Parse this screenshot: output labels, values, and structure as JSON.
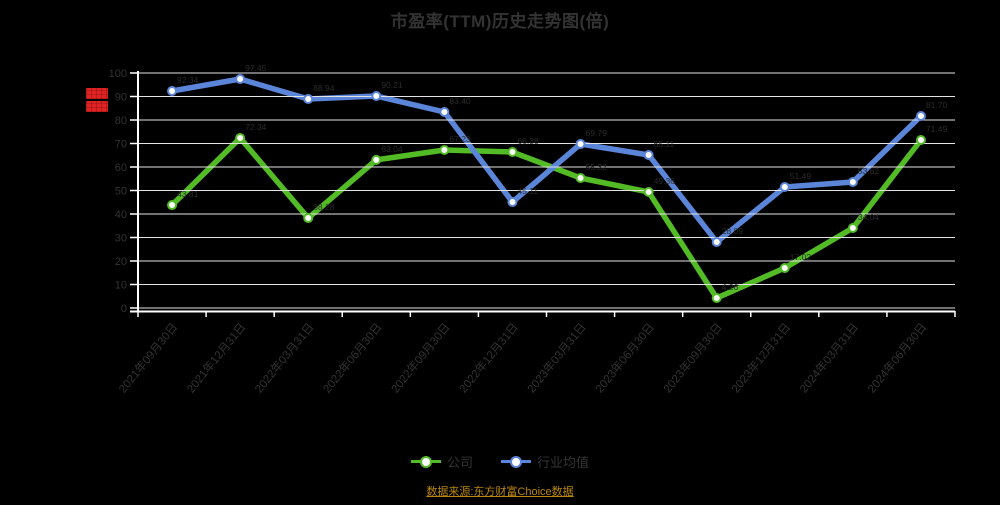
{
  "title": "市盈率(TTM)历史走势图(倍)",
  "source_text": "数据来源:东方财富Choice数据",
  "colors": {
    "background": "#000000",
    "text": "#333333",
    "label_text": "#2b2b2b",
    "grid": "#e3e3e3",
    "axis": "#ffffff",
    "green_series": "#52bb26",
    "blue_series": "#5b85d8",
    "source_link": "#b8860b",
    "red_badge": "#e02222"
  },
  "chart_data": {
    "type": "line",
    "title": "市盈率(TTM)历史走势图(倍)",
    "categories": [
      "2021年09月30日",
      "2021年12月31日",
      "2022年03月31日",
      "2022年06月30日",
      "2022年09月30日",
      "2022年12月31日",
      "2023年03月31日",
      "2023年06月30日",
      "2023年09月30日",
      "2023年12月31日",
      "2024年03月31日",
      "2024年06月30日"
    ],
    "series": [
      {
        "name": "公司",
        "color": "#52bb26",
        "values": [
          43.81,
          72.34,
          38.28,
          63.04,
          67.23,
          66.38,
          55.32,
          49.36,
          4.26,
          17.02,
          34.04,
          71.49
        ]
      },
      {
        "name": "行业均值",
        "color": "#5b85d8",
        "values": [
          92.34,
          97.45,
          88.94,
          90.21,
          83.4,
          45.11,
          69.79,
          65.11,
          28.09,
          51.49,
          53.62,
          81.7
        ]
      }
    ],
    "ylim": [
      0,
      100
    ],
    "ytick_labels": [
      "0",
      "10",
      "20",
      "30",
      "40",
      "50",
      "60",
      "70",
      "80",
      "90",
      "100"
    ],
    "xlabel": "",
    "ylabel": "",
    "grid": true,
    "legend_position": "bottom",
    "data_labels": true
  },
  "legend": {
    "items": [
      {
        "label": "公司",
        "color": "#52bb26"
      },
      {
        "label": "行业均值",
        "color": "#5b85d8"
      }
    ]
  }
}
